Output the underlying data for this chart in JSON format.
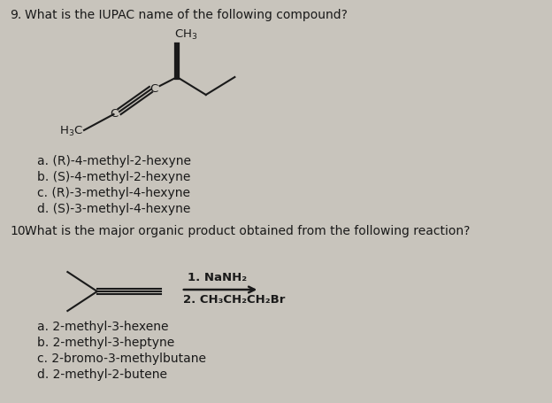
{
  "bg_color": "#c8c4bc",
  "text_color": "#1a1a1a",
  "q9_number": "9.",
  "q9_question": "  What is the IUPAC name of the following compound?",
  "q9_options": [
    "a. (R)-4-methyl-2-hexyne",
    "b. (S)-4-methyl-2-hexyne",
    "c. (R)-3-methyl-4-hexyne",
    "d. (S)-3-methyl-4-hexyne"
  ],
  "q10_number": "10.",
  "q10_question": "  What is the major organic product obtained from the following reaction?",
  "q10_reagent1": "1. NaNH₂",
  "q10_reagent2": "2. CH₃CH₂CH₂Br",
  "q10_options": [
    "a. 2-methyl-3-hexene",
    "b. 2-methyl-3-heptyne",
    "c. 2-bromo-3-methylbutane",
    "d. 2-methyl-2-butene"
  ],
  "font_size_question": 10,
  "font_size_options": 10,
  "font_size_number": 10
}
